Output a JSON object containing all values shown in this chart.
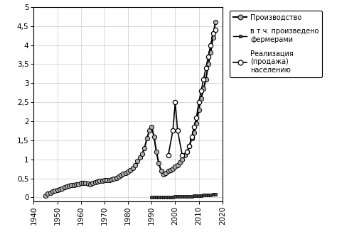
{
  "production": {
    "x": [
      1945,
      1946,
      1947,
      1948,
      1949,
      1950,
      1951,
      1952,
      1953,
      1954,
      1955,
      1956,
      1957,
      1958,
      1959,
      1960,
      1961,
      1962,
      1963,
      1964,
      1965,
      1966,
      1967,
      1968,
      1969,
      1970,
      1971,
      1972,
      1973,
      1974,
      1975,
      1976,
      1977,
      1978,
      1979,
      1980,
      1981,
      1982,
      1983,
      1984,
      1985,
      1986,
      1987,
      1988,
      1989,
      1990,
      1991,
      1992,
      1993,
      1994,
      1995,
      1996,
      1997,
      1998,
      1999,
      2000,
      2001,
      2002,
      2003,
      2004,
      2005,
      2006,
      2007,
      2008,
      2009,
      2010,
      2011,
      2012,
      2013,
      2014,
      2015,
      2016,
      2017
    ],
    "y": [
      0.05,
      0.1,
      0.12,
      0.15,
      0.18,
      0.2,
      0.22,
      0.24,
      0.26,
      0.28,
      0.3,
      0.32,
      0.33,
      0.35,
      0.35,
      0.38,
      0.38,
      0.38,
      0.37,
      0.35,
      0.38,
      0.4,
      0.42,
      0.43,
      0.44,
      0.45,
      0.45,
      0.46,
      0.48,
      0.5,
      0.52,
      0.55,
      0.58,
      0.62,
      0.65,
      0.68,
      0.72,
      0.78,
      0.85,
      0.95,
      1.05,
      1.15,
      1.3,
      1.55,
      1.75,
      1.85,
      1.6,
      1.2,
      0.9,
      0.7,
      0.6,
      0.65,
      0.7,
      0.72,
      0.75,
      0.8,
      0.85,
      0.92,
      1.0,
      1.1,
      1.2,
      1.35,
      1.55,
      1.7,
      1.95,
      2.3,
      2.6,
      2.85,
      3.1,
      3.5,
      3.8,
      4.2,
      4.6
    ]
  },
  "farmers": {
    "x": [
      1990,
      1991,
      1992,
      1993,
      1994,
      1995,
      1996,
      1997,
      1998,
      1999,
      2000,
      2001,
      2002,
      2003,
      2004,
      2005,
      2006,
      2007,
      2008,
      2009,
      2010,
      2011,
      2012,
      2013,
      2014,
      2015,
      2016,
      2017
    ],
    "y": [
      0.01,
      0.01,
      0.01,
      0.01,
      0.01,
      0.01,
      0.01,
      0.01,
      0.01,
      0.01,
      0.02,
      0.02,
      0.02,
      0.02,
      0.02,
      0.03,
      0.03,
      0.03,
      0.04,
      0.04,
      0.05,
      0.05,
      0.06,
      0.06,
      0.07,
      0.07,
      0.08,
      0.08
    ]
  },
  "sales": {
    "x": [
      1997,
      1999,
      2000,
      2001,
      2003,
      2005,
      2006,
      2007,
      2008,
      2009,
      2010,
      2011,
      2012,
      2013,
      2014,
      2015,
      2016,
      2017
    ],
    "y": [
      1.1,
      1.75,
      2.5,
      1.75,
      1.1,
      1.2,
      1.35,
      1.6,
      1.85,
      2.1,
      2.5,
      2.8,
      3.1,
      3.4,
      3.7,
      4.0,
      4.3,
      4.4
    ]
  },
  "legend_labels": [
    "Производство",
    "в т.ч. произведено\nфермерами",
    "Реализация\n(продажа)\nнаселению"
  ],
  "xlim": [
    1940,
    2020
  ],
  "ylim_bottom": -0.1,
  "ylim_top": 5.0,
  "yticks": [
    0,
    0.5,
    1.0,
    1.5,
    2.0,
    2.5,
    3.0,
    3.5,
    4.0,
    4.5,
    5.0
  ],
  "ytick_labels": [
    "0",
    "0,5",
    "1",
    "1,5",
    "2",
    "2,5",
    "3",
    "3,5",
    "4",
    "4,5",
    "5"
  ],
  "xticks": [
    1940,
    1950,
    1960,
    1970,
    1980,
    1990,
    2000,
    2010,
    2020
  ],
  "background_color": "#ffffff",
  "grid_color": "#c8c8c8",
  "line_color": "#000000",
  "production_marker_color": "#b0b0b0",
  "sales_marker_color": "#ffffff",
  "farmers_marker_color": "#404040"
}
